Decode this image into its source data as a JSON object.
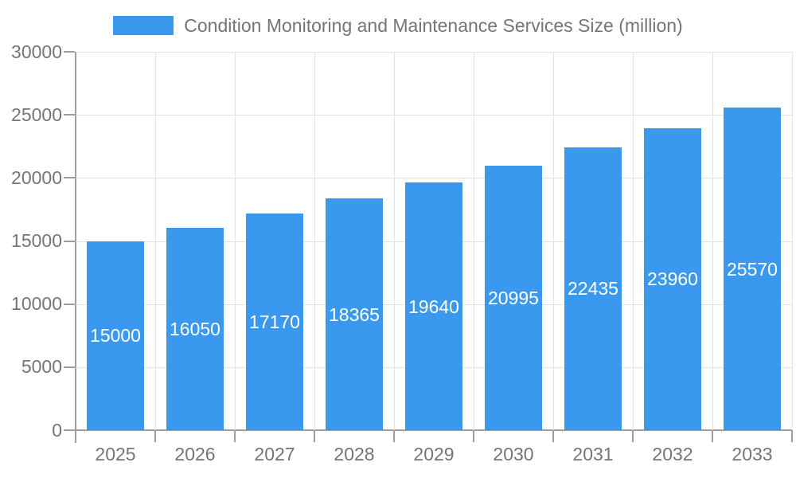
{
  "legend": {
    "label": "Condition Monitoring and Maintenance Services Size (million)"
  },
  "chart_data": {
    "type": "bar",
    "title": "Condition Monitoring and Maintenance Services Size (million)",
    "categories": [
      "2025",
      "2026",
      "2027",
      "2028",
      "2029",
      "2030",
      "2031",
      "2032",
      "2033"
    ],
    "values": [
      15000,
      16050,
      17170,
      18365,
      19640,
      20995,
      22435,
      23960,
      25570
    ],
    "xlabel": "",
    "ylabel": "",
    "ylim": [
      0,
      30000
    ],
    "yticks": [
      0,
      5000,
      10000,
      15000,
      20000,
      25000,
      30000
    ],
    "grid": true,
    "legend_position": "top",
    "bar_label_position": "inside-middle",
    "colors": {
      "bar": "#3a99ee",
      "bar_label": "#ffffff",
      "axis_line": "#9e9e9e",
      "grid_line": "#e3e3e3",
      "tick_label": "#757575",
      "legend_text": "#757575",
      "background": "#ffffff"
    }
  }
}
